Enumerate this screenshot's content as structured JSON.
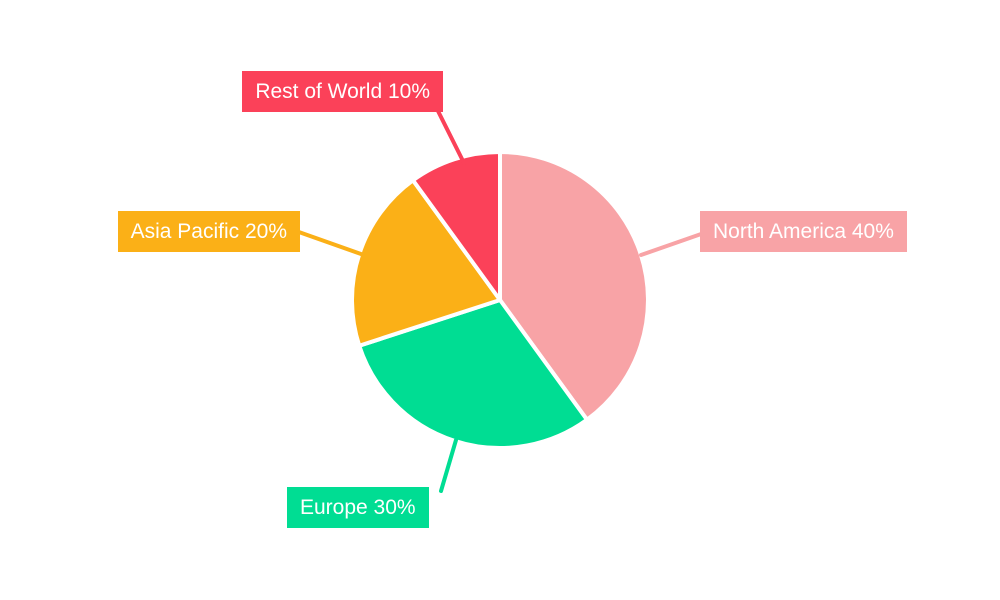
{
  "page": {
    "background": "#FFFFFF"
  },
  "chart_data": {
    "type": "pie",
    "title": "",
    "start_angle_deg": 0,
    "direction": "clockwise",
    "categories": [
      "North America",
      "Europe",
      "Asia Pacific",
      "Rest of World"
    ],
    "values": [
      40,
      30,
      20,
      10
    ],
    "unit": "%",
    "segments": [
      {
        "label": "North America",
        "value": 40,
        "display": "North America 40%",
        "color": "#F8A3A6"
      },
      {
        "label": "Europe",
        "value": 30,
        "display": "Europe 30%",
        "color": "#00DD93"
      },
      {
        "label": "Asia Pacific",
        "value": 20,
        "display": "Asia Pacific 20%",
        "color": "#FBB017"
      },
      {
        "label": "Rest of World",
        "value": 10,
        "display": "Rest of World 10%",
        "color": "#FB4159"
      }
    ],
    "slice_separator_color": "#FFFFFF",
    "label_text_color": "#FFFFFF",
    "legend_position": "callout-labels",
    "grid": false
  }
}
